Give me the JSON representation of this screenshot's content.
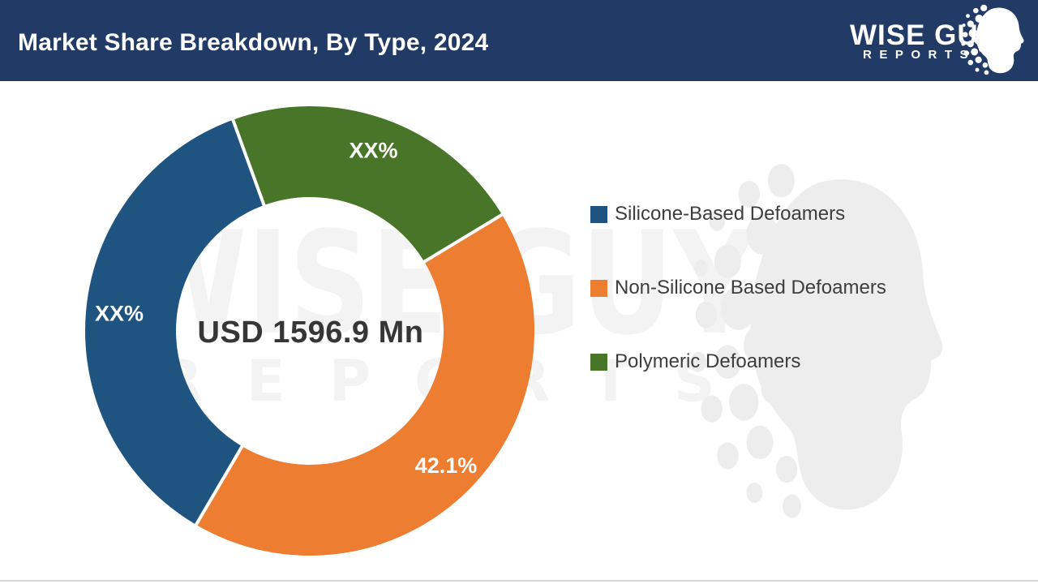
{
  "header": {
    "title": "Market Share Breakdown, By Type, 2024",
    "logo": {
      "line1": "WISE GUY",
      "line2": "REPORTS"
    }
  },
  "watermark": {
    "line1": "WISE GUY",
    "line2": "REPORTS"
  },
  "chart_data": {
    "type": "pie",
    "donut": true,
    "title": "Market Share Breakdown, By Type, 2024",
    "center_label": "USD 1596.9 Mn",
    "legend_position": "right",
    "slices": [
      {
        "name": "Silicone-Based Defoamers",
        "label": "XX%",
        "value_pct": 36.0,
        "color": "#1F5480"
      },
      {
        "name": "Non-Silicone Based Defoamers",
        "label": "42.1%",
        "value_pct": 42.1,
        "color": "#ED7D31"
      },
      {
        "name": "Polymeric Defoamers",
        "label": "XX%",
        "value_pct": 21.9,
        "color": "#487527"
      }
    ],
    "layout": {
      "start_angle_deg": 110,
      "clockwise": true,
      "draw_order": [
        2,
        1,
        0
      ],
      "separator_color": "#ffffff",
      "label_color": "#ffffff",
      "center_label_color": "#363636"
    }
  }
}
